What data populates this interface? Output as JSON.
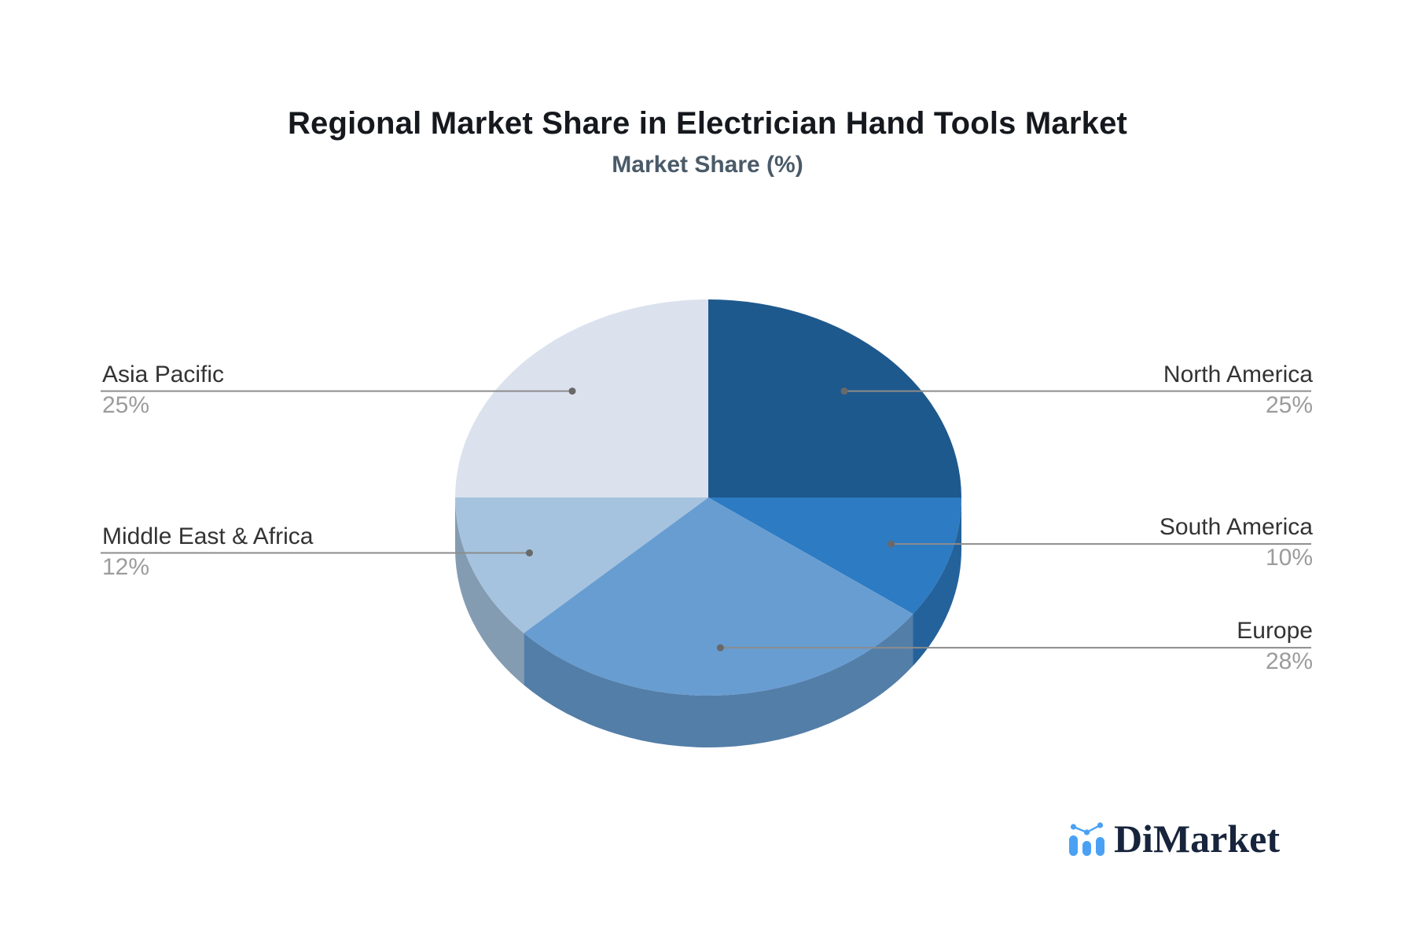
{
  "chart_data": {
    "type": "pie",
    "style": "3d",
    "title": "Regional Market Share in Electrician Hand Tools Market",
    "subtitle": "Market Share (%)",
    "unit": "%",
    "legend": "none",
    "labels": "outside-with-leader-lines",
    "direction": "clockwise",
    "start_angle_deg": 0,
    "slices": [
      {
        "label": "North America",
        "value": 25,
        "pct_label": "25%",
        "color": "#1E598D",
        "side": "right"
      },
      {
        "label": "South America",
        "value": 10,
        "pct_label": "10%",
        "color": "#2D7BC2",
        "side": "right"
      },
      {
        "label": "Europe",
        "value": 28,
        "pct_label": "28%",
        "color": "#689DD2",
        "side": "right"
      },
      {
        "label": "Middle East & Africa",
        "value": 12,
        "pct_label": "12%",
        "color": "#A5C3DE",
        "side": "left"
      },
      {
        "label": "Asia Pacific",
        "value": 25,
        "pct_label": "25%",
        "color": "#DBE2EE",
        "side": "left"
      }
    ]
  },
  "logo": {
    "text": "DiMarket",
    "icon": "bar-line-chart-icon",
    "icon_color": "#4AA1F3",
    "text_color": "#17243C"
  },
  "colors": {
    "leader_line": "#8C8C8C",
    "leader_dot": "#696969",
    "label_text": "#333333",
    "percent_text": "#9C9C9C",
    "title_text": "#15181D",
    "subtitle_text": "#4A5A68"
  }
}
